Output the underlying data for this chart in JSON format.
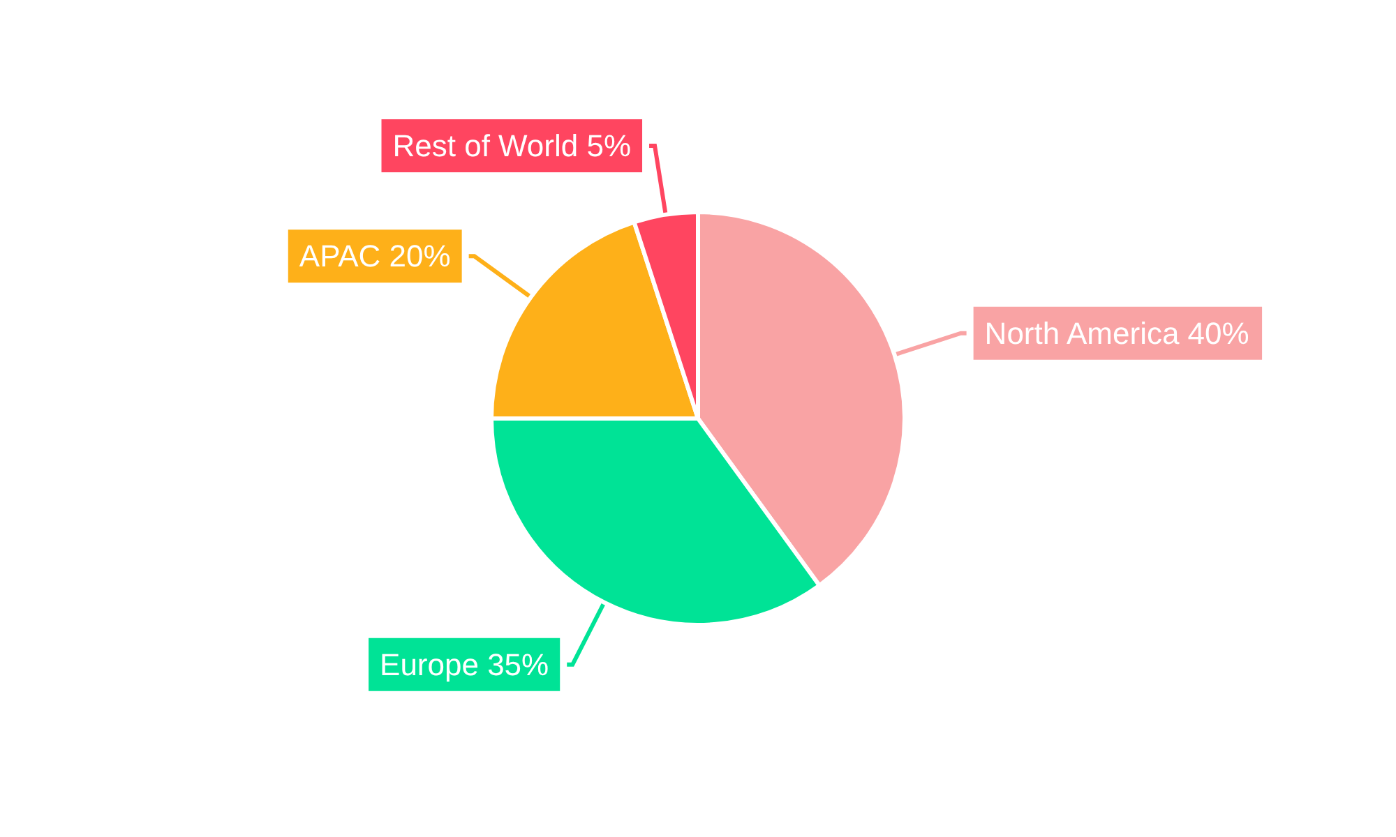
{
  "chart_data": {
    "type": "pie",
    "categories": [
      "North America",
      "Europe",
      "APAC",
      "Rest of World"
    ],
    "values": [
      40,
      35,
      20,
      5
    ],
    "colors": [
      "#f9a3a4",
      "#00e396",
      "#feb019",
      "#ff4560"
    ],
    "value_labels": [
      "40%",
      "35%",
      "20%",
      "5%"
    ],
    "legend": false
  }
}
